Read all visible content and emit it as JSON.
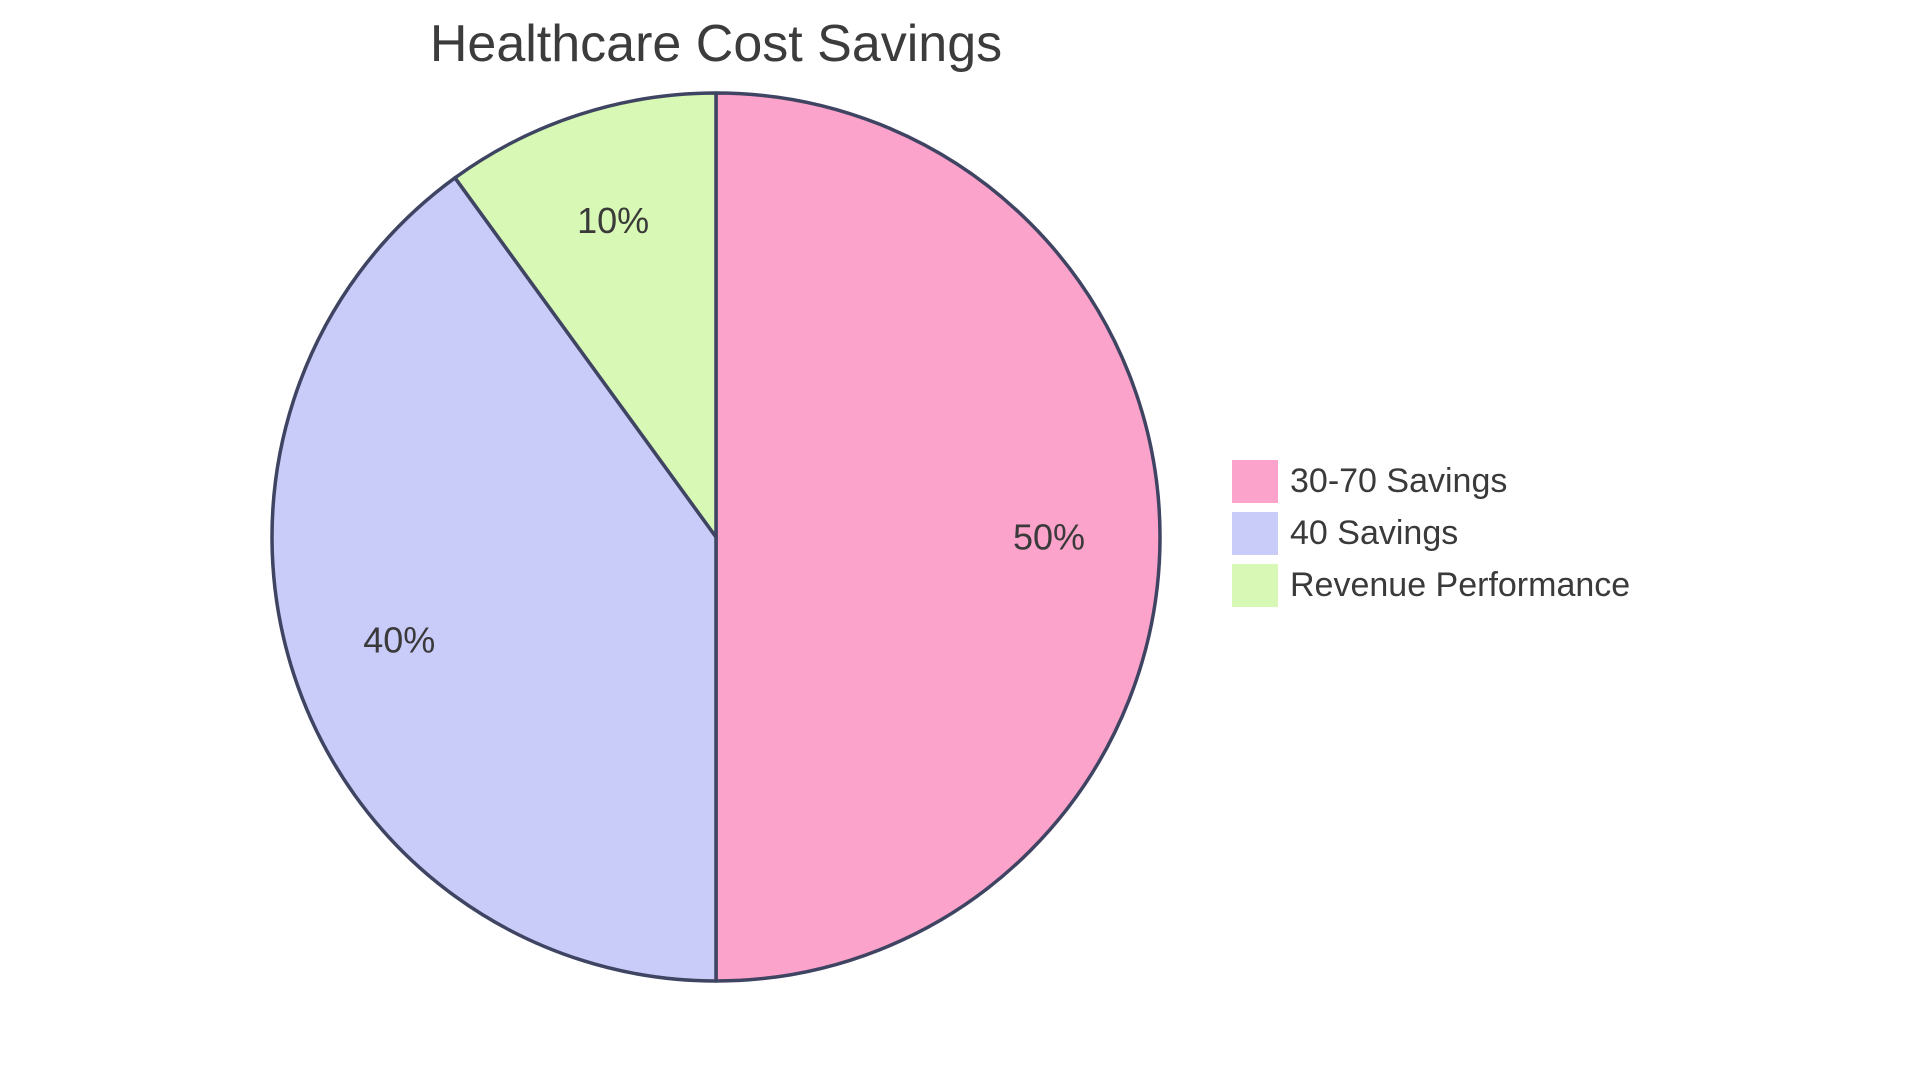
{
  "chart_data": {
    "type": "pie",
    "title": "Healthcare Cost Savings",
    "slices": [
      {
        "label": "30-70 Savings",
        "value": 50,
        "pct_label": "50%",
        "color": "#FCA3CB"
      },
      {
        "label": "40 Savings",
        "value": 40,
        "pct_label": "40%",
        "color": "#C9CBF9"
      },
      {
        "label": "Revenue Performance",
        "value": 10,
        "pct_label": "10%",
        "color": "#D7F9B5"
      }
    ],
    "start_angle": "top",
    "direction": "clockwise",
    "edge_color": "#3E4462",
    "label_color": "#3A3A3A",
    "title_color": "#3C3C3C",
    "background": "#FFFFFF",
    "legend_position": "center-right",
    "grid": "off"
  }
}
